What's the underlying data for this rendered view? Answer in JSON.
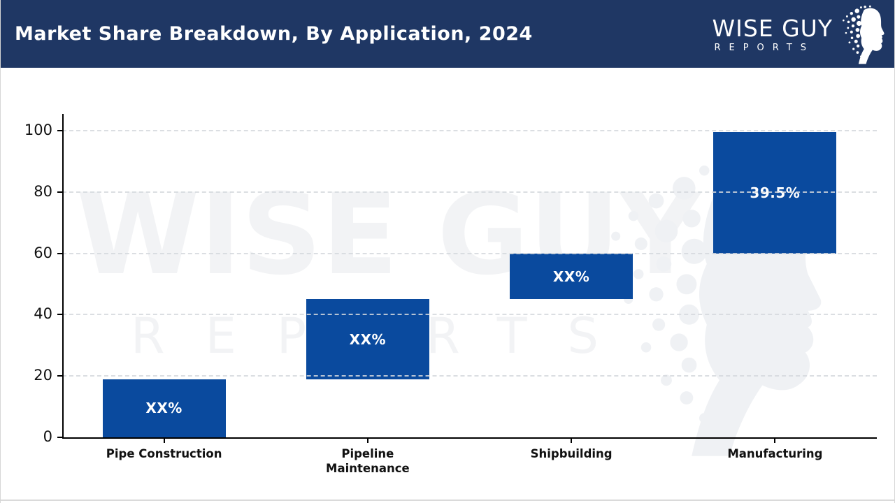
{
  "header": {
    "title": "Market Share Breakdown, By Application, 2024",
    "logo": {
      "name": "WISE GUY",
      "subtitle": "REPORTS"
    }
  },
  "watermark": {
    "name": "WISE GUY",
    "subtitle": "REPORTS"
  },
  "chart_data": {
    "type": "bar",
    "variant": "waterfall",
    "title": "Market Share Breakdown, By Application, 2024",
    "categories": [
      "Pipe Construction",
      "Pipeline\nMaintenance",
      "Shipbuilding",
      "Manufacturing"
    ],
    "bars": [
      {
        "category": "Pipe Construction",
        "start": 0,
        "end": 19,
        "label": "XX%"
      },
      {
        "category": "Pipeline Maintenance",
        "start": 19,
        "end": 45,
        "label": "XX%"
      },
      {
        "category": "Shipbuilding",
        "start": 45,
        "end": 60,
        "label": "XX%"
      },
      {
        "category": "Manufacturing",
        "start": 60,
        "end": 99.5,
        "label": "39.5%"
      }
    ],
    "xlabel": "",
    "ylabel": "",
    "yticks": [
      0,
      20,
      40,
      60,
      80,
      100
    ],
    "ylim": [
      0,
      105.5
    ],
    "grid": {
      "horizontal": true,
      "style": "dashed",
      "drawn_over_bars": true
    },
    "legend": "none",
    "colors": {
      "bar": "#0A4A9E",
      "bar_label": "#FFFFFF",
      "axis": "#000000",
      "grid": "#DCDCDC",
      "header_bg": "#1F3764",
      "header_text": "#FFFFFF",
      "watermark": "#F2F3F5"
    }
  }
}
